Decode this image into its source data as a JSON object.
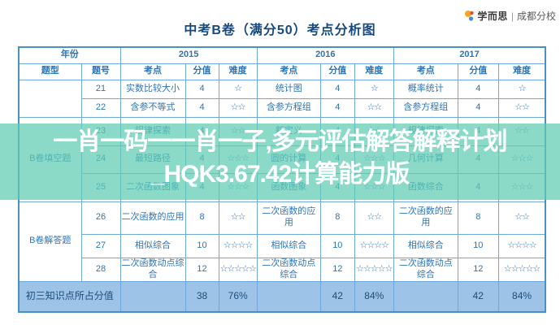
{
  "brand": {
    "icon": "flame-icon",
    "primary": "学而思",
    "divider": "|",
    "secondary": "成都分校"
  },
  "title": "中考B卷（满分50）考点分析图",
  "watermark": {
    "line1": "一肖一码一一肖一子,多元评估解答解释计划",
    "line2": "_HQK3.67.42计算能力版",
    "band_color": "#5ECCB3",
    "text_color": "#ffffff"
  },
  "colors": {
    "highlight_red": "#ee0d0d",
    "summary_blue": "#9dc3e6",
    "table_border": "#6fa8dc",
    "cell_text": "#2e74b5",
    "title_text": "#17497e"
  },
  "table": {
    "year_label": "年份",
    "years": [
      "2015",
      "2016",
      "2017"
    ],
    "sub_headers": {
      "type": "题型",
      "num": "题号",
      "topic": "考点",
      "score": "分值",
      "difficulty": "难度"
    },
    "groups": [
      {
        "label": "B卷填空题",
        "rows": [
          "23",
          "24",
          "25"
        ]
      },
      {
        "label": "B卷解答题",
        "rows": [
          "26",
          "27",
          "28"
        ]
      }
    ],
    "rows": [
      {
        "num": "21",
        "num_red": false,
        "num_legible": true,
        "cells": [
          {
            "topic": "实数比较大小",
            "score": "4",
            "difficulty": "☆",
            "red": false,
            "legible": true
          },
          {
            "topic": "统计图",
            "score": "4",
            "difficulty": "☆",
            "red": false,
            "legible": true
          },
          {
            "topic": "概率统计",
            "score": "4",
            "difficulty": "☆",
            "red": false,
            "legible": true
          }
        ]
      },
      {
        "num": "22",
        "num_red": false,
        "num_legible": true,
        "cells": [
          {
            "topic": "含参不等式",
            "score": "4",
            "difficulty": "☆☆",
            "red": false,
            "legible": true
          },
          {
            "topic": "含参方程组",
            "score": "4",
            "difficulty": "☆☆",
            "red": false,
            "legible": true
          },
          {
            "topic": "含参方程组",
            "score": "4",
            "difficulty": "☆☆",
            "red": false,
            "legible": true
          }
        ]
      },
      {
        "num": "23",
        "num_red": false,
        "num_legible": true,
        "cells": [
          {
            "topic": "规律探索",
            "score": "4",
            "difficulty": "☆☆",
            "red": false,
            "legible": true
          },
          {
            "topic": "新定义",
            "score": "4",
            "difficulty": "☆☆",
            "red": true,
            "legible": false
          },
          {
            "topic": "规律探索",
            "score": "4",
            "difficulty": "☆☆",
            "red": true,
            "legible": false
          }
        ]
      },
      {
        "num": "24",
        "num_red": true,
        "num_legible": false,
        "cells": [
          {
            "topic": "最短路径",
            "score": "4",
            "difficulty": "☆☆☆",
            "red": true,
            "legible": false
          },
          {
            "topic": "圆的计算",
            "score": "4",
            "difficulty": "☆☆☆",
            "red": true,
            "legible": false
          },
          {
            "topic": "几何计算",
            "score": "4",
            "difficulty": "☆☆☆",
            "red": true,
            "legible": false
          }
        ]
      },
      {
        "num": "25",
        "num_red": true,
        "num_legible": false,
        "cells": [
          {
            "topic": "二次函数图象",
            "score": "4",
            "difficulty": "☆☆☆",
            "red": true,
            "legible": false
          },
          {
            "topic": "函数图象",
            "score": "4",
            "difficulty": "☆☆☆",
            "red": true,
            "legible": false
          },
          {
            "topic": "函数综合",
            "score": "4",
            "difficulty": "☆☆☆",
            "red": true,
            "legible": false
          }
        ]
      },
      {
        "num": "26",
        "num_red": true,
        "num_legible": true,
        "cells": [
          {
            "topic": "二次函数的应用",
            "score": "8",
            "difficulty": "☆☆",
            "red": true,
            "legible": true
          },
          {
            "topic": "二次函数的应用",
            "score": "8",
            "difficulty": "☆☆",
            "red": true,
            "legible": true
          },
          {
            "topic": "二次函数的应用",
            "score": "8",
            "difficulty": "☆☆",
            "red": true,
            "legible": true
          }
        ]
      },
      {
        "num": "27",
        "num_red": true,
        "num_legible": true,
        "cells": [
          {
            "topic": "相似综合",
            "score": "10",
            "difficulty": "☆☆☆☆",
            "red": true,
            "legible": true
          },
          {
            "topic": "相似综合",
            "score": "10",
            "difficulty": "☆☆☆☆",
            "red": true,
            "legible": true
          },
          {
            "topic": "相似综合",
            "score": "10",
            "difficulty": "☆☆☆☆",
            "red": true,
            "legible": true
          }
        ]
      },
      {
        "num": "28",
        "num_red": true,
        "num_legible": true,
        "cells": [
          {
            "topic": "二次函数动点综合",
            "score": "12",
            "difficulty": "☆☆☆☆☆",
            "red": true,
            "legible": true
          },
          {
            "topic": "二次函数动点综合",
            "score": "12",
            "difficulty": "☆☆☆☆☆",
            "red": true,
            "legible": true
          },
          {
            "topic": "二次函数动点综合",
            "score": "12",
            "difficulty": "☆☆☆☆☆",
            "red": true,
            "legible": true
          }
        ]
      }
    ],
    "summary": {
      "label": "初三知识点所占分值",
      "per_year": [
        {
          "score": "38",
          "percent": "76%"
        },
        {
          "score": "42",
          "percent": "84%"
        },
        {
          "score": "42",
          "percent": "84%"
        }
      ]
    }
  }
}
